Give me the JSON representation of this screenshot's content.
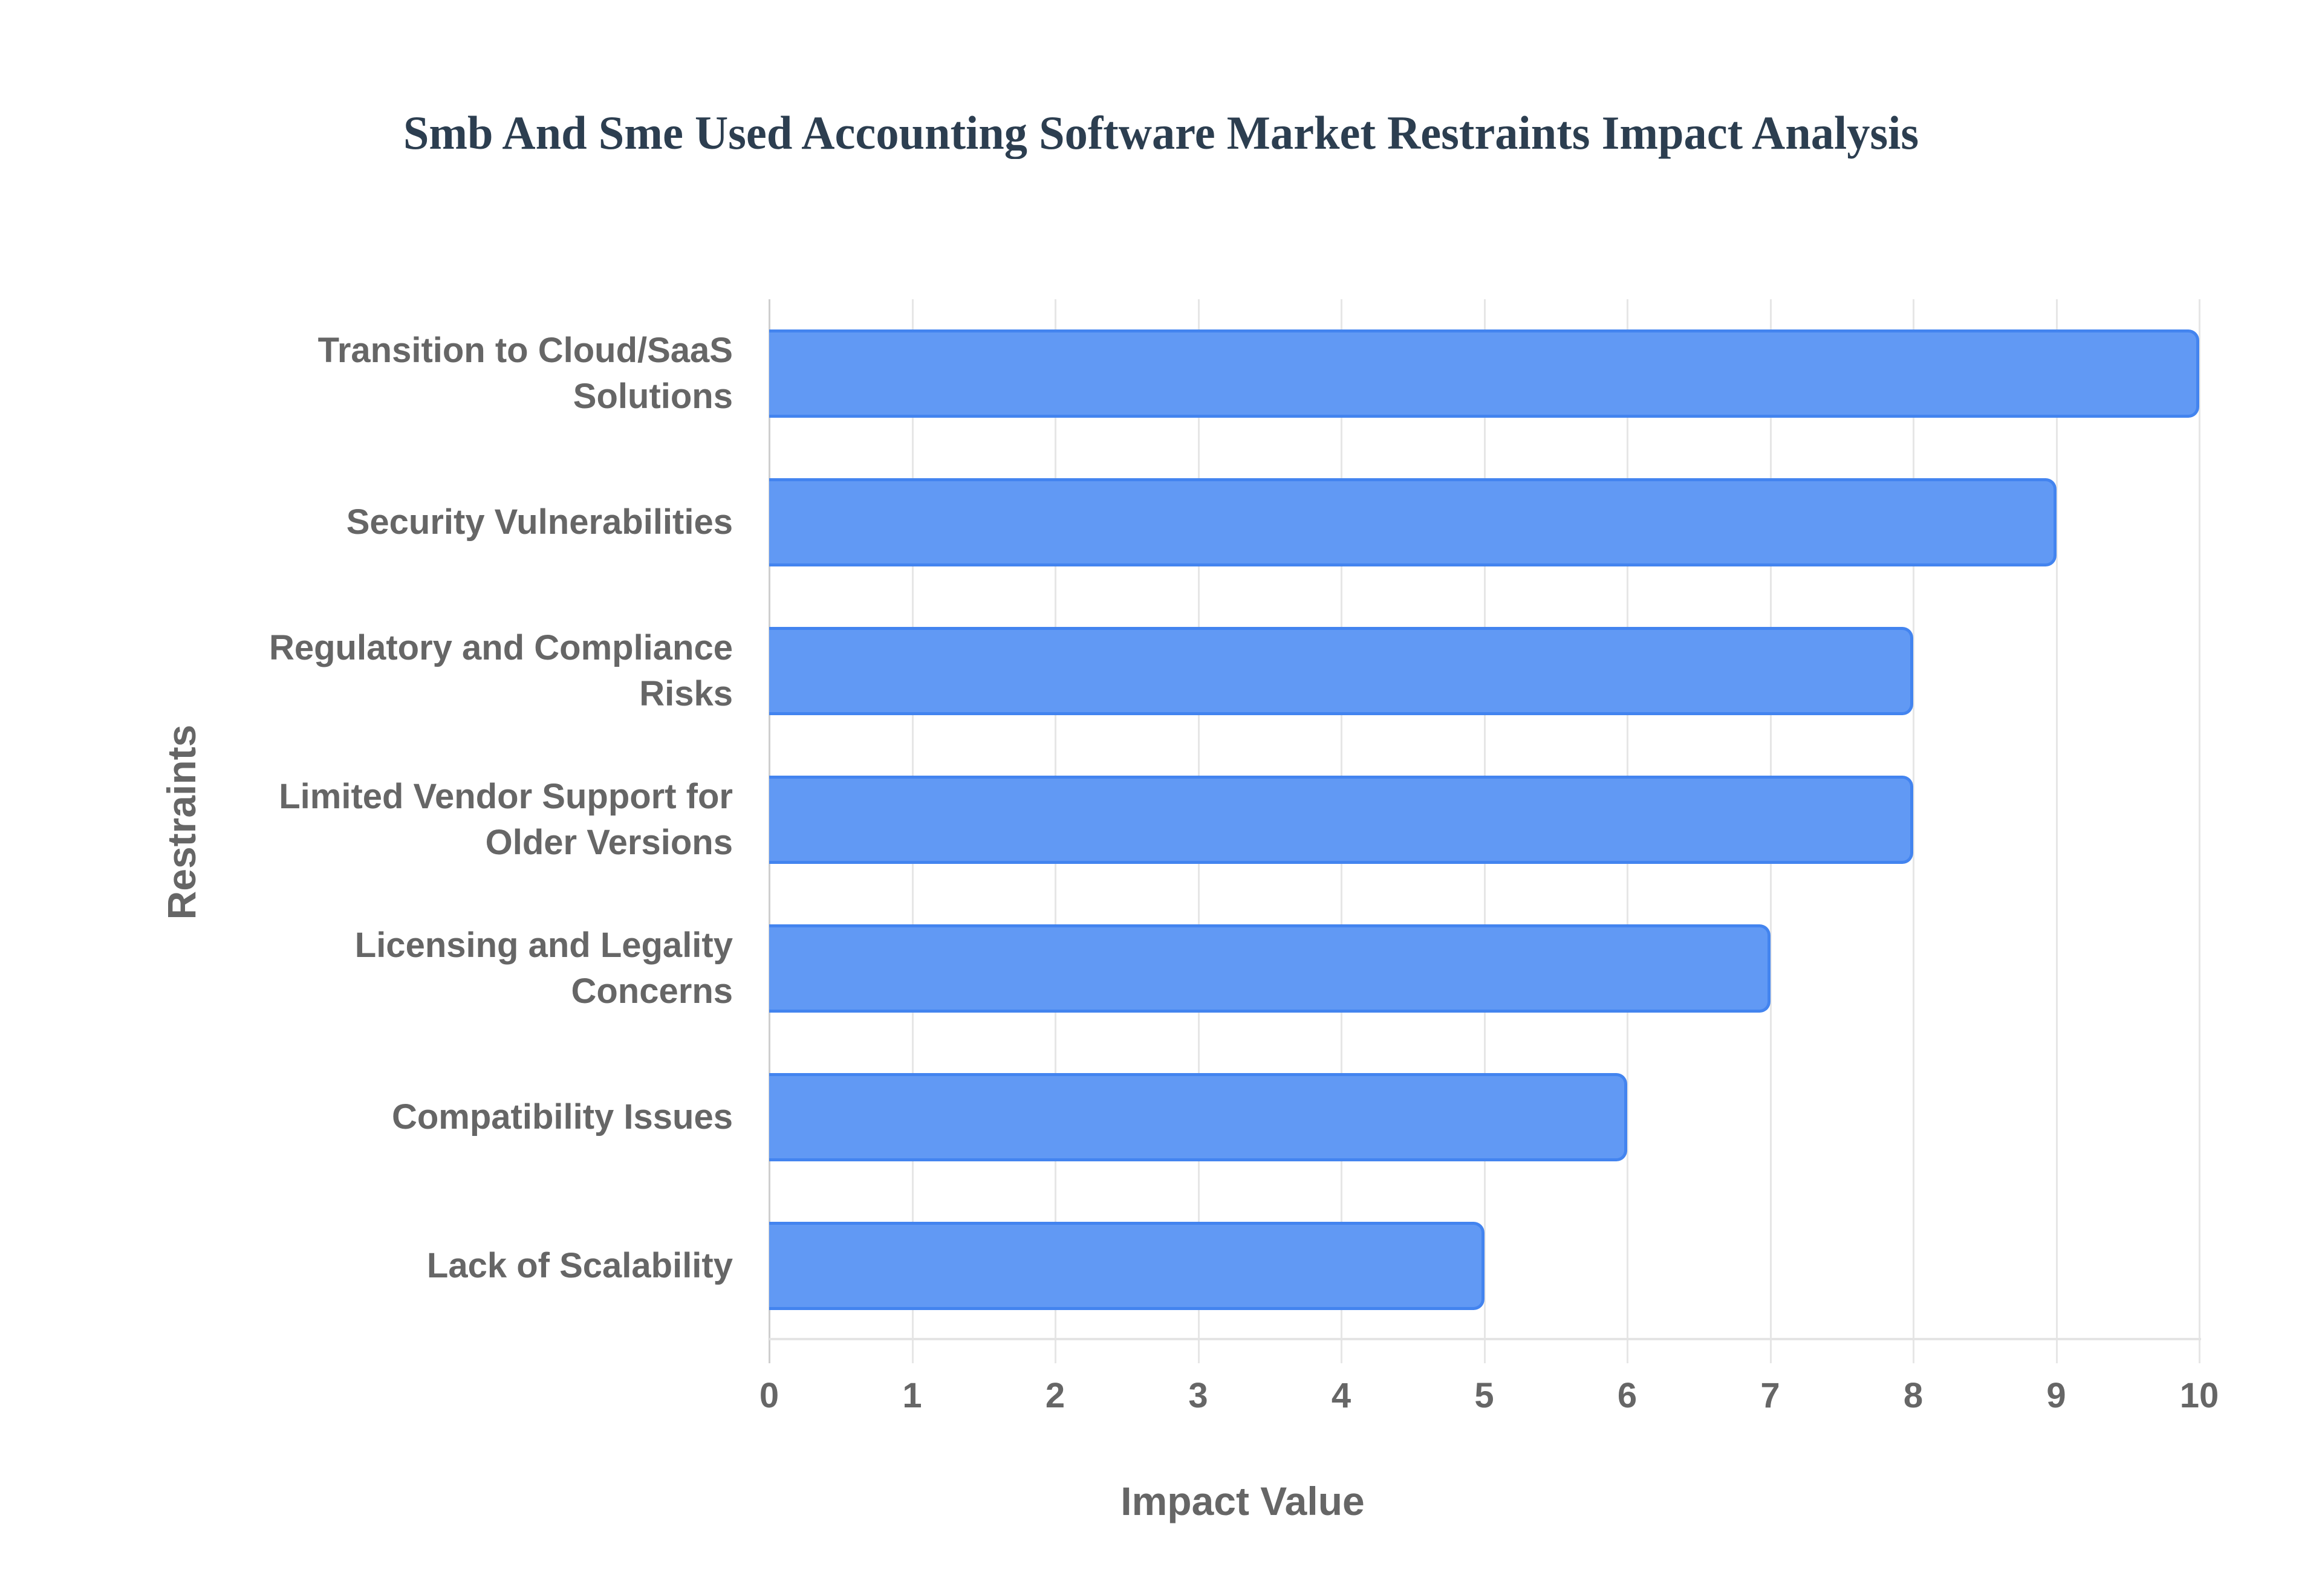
{
  "chart": {
    "title": "Smb And Sme Used Accounting Software Market Restraints Impact Analysis",
    "xlabel": "Impact Value",
    "ylabel": "Restraints",
    "ticks": [
      "0",
      "1",
      "2",
      "3",
      "4",
      "5",
      "6",
      "7",
      "8",
      "9",
      "10"
    ],
    "categories": [
      [
        "Transition to Cloud/SaaS",
        "Solutions"
      ],
      [
        "Security Vulnerabilities"
      ],
      [
        "Regulatory and Compliance",
        "Risks"
      ],
      [
        "Limited Vendor Support for",
        "Older Versions"
      ],
      [
        "Licensing and Legality",
        "Concerns"
      ],
      [
        "Compatibility Issues"
      ],
      [
        "Lack of Scalability"
      ]
    ],
    "bar_color": "#6199f4",
    "bar_border_color": "#4384ef"
  },
  "chart_data": {
    "type": "bar",
    "orientation": "horizontal",
    "title": "Smb And Sme Used Accounting Software Market Restraints Impact Analysis",
    "xlabel": "Impact Value",
    "ylabel": "Restraints",
    "categories": [
      "Transition to Cloud/SaaS Solutions",
      "Security Vulnerabilities",
      "Regulatory and Compliance Risks",
      "Limited Vendor Support for Older Versions",
      "Licensing and Legality Concerns",
      "Compatibility Issues",
      "Lack of Scalability"
    ],
    "values": [
      10,
      9,
      8,
      8,
      7,
      6,
      5
    ],
    "xlim": [
      0,
      10
    ],
    "xticks": [
      0,
      1,
      2,
      3,
      4,
      5,
      6,
      7,
      8,
      9,
      10
    ],
    "grid": true,
    "legend": null
  }
}
